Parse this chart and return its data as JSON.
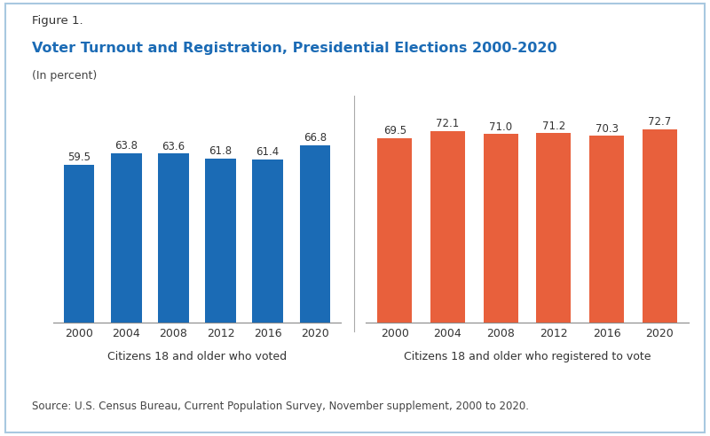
{
  "figure_label": "Figure 1.",
  "title": "Voter Turnout and Registration, Presidential Elections 2000-2020",
  "subtitle": "(In percent)",
  "source": "Source: U.S. Census Bureau, Current Population Survey, November supplement, 2000 to 2020.",
  "years": [
    "2000",
    "2004",
    "2008",
    "2012",
    "2016",
    "2020"
  ],
  "voted_values": [
    59.5,
    63.8,
    63.6,
    61.8,
    61.4,
    66.8
  ],
  "registered_values": [
    69.5,
    72.1,
    71.0,
    71.2,
    70.3,
    72.7
  ],
  "voted_color": "#1B6BB5",
  "registered_color": "#E8603C",
  "voted_label": "Citizens 18 and older who voted",
  "registered_label": "Citizens 18 and older who registered to vote",
  "background_color": "#FFFFFF",
  "border_color": "#A8C8E0",
  "title_color": "#1B6BB5",
  "figure_label_color": "#333333",
  "subtitle_color": "#444444",
  "source_color": "#444444",
  "bar_width": 0.65,
  "ylim": [
    0,
    82
  ],
  "divider_color": "#AAAAAA"
}
